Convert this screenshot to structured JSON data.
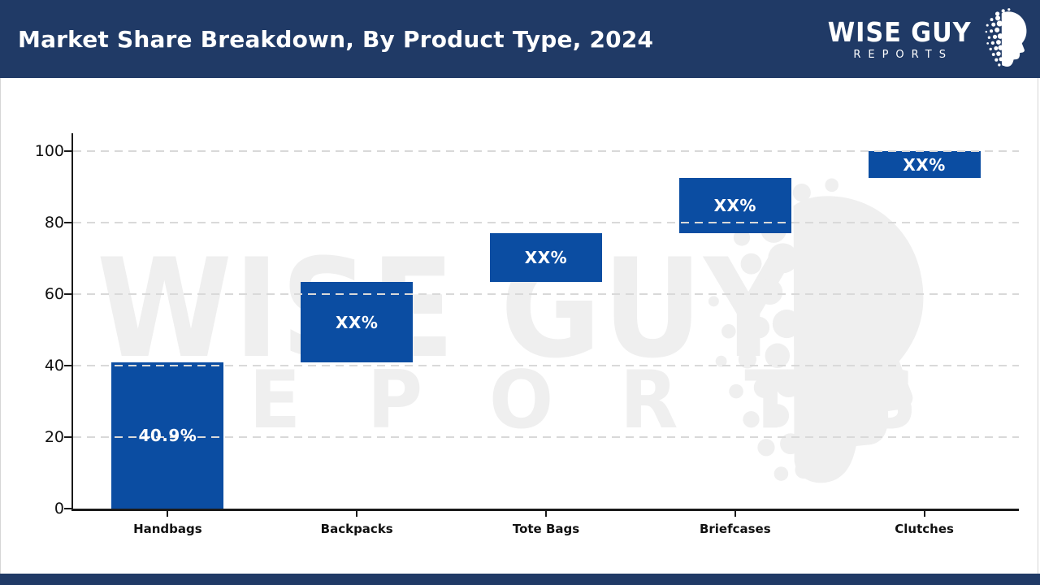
{
  "header": {
    "title": "Market Share Breakdown, By Product Type, 2024"
  },
  "logo": {
    "brand": "WISE GUY",
    "sub": "REPORTS"
  },
  "watermark": {
    "brand": "WISE GUY",
    "sub": "R E P O R T S"
  },
  "chart_data": {
    "type": "bar",
    "variant": "waterfall",
    "title": "Market Share Breakdown, By Product Type, 2024",
    "categories": [
      "Handbags",
      "Backpacks",
      "Tote Bags",
      "Briefcases",
      "Clutches"
    ],
    "series": [
      {
        "name": "Market share (%)",
        "segments": [
          {
            "category": "Handbags",
            "from": 0,
            "to": 40.9,
            "label": "40.9%"
          },
          {
            "category": "Backpacks",
            "from": 40.9,
            "to": 63.4,
            "label": "XX%"
          },
          {
            "category": "Tote Bags",
            "from": 63.4,
            "to": 77.0,
            "label": "XX%"
          },
          {
            "category": "Briefcases",
            "from": 77.0,
            "to": 92.4,
            "label": "XX%"
          },
          {
            "category": "Clutches",
            "from": 92.4,
            "to": 100.0,
            "label": "XX%"
          }
        ]
      }
    ],
    "xlabel": "",
    "ylabel": "",
    "yticks": [
      0,
      20,
      40,
      60,
      80,
      100
    ],
    "ylim": [
      0,
      105
    ],
    "grid": true,
    "grid_style": "dashed",
    "legend": "none",
    "bar_color": "#0b4da2",
    "bar_label_color": "#ffffff",
    "axis_color": "#1a1a1a",
    "grid_color": "#d9d9d9"
  },
  "colors": {
    "header_bg": "#203a66",
    "footer_bg": "#203a66",
    "page_bg": "#ffffff",
    "watermark": "#efefef"
  }
}
